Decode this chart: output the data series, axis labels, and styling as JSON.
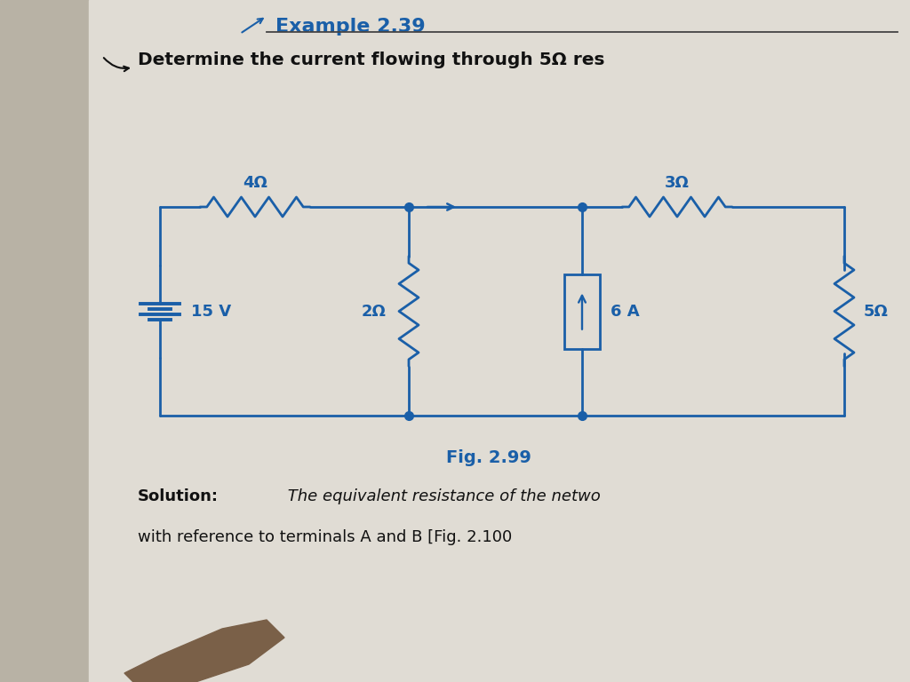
{
  "title": "Example 2.39",
  "question": "Determine the current flowing through 5Ω res",
  "fig_label": "Fig. 2.99",
  "solution_line1": "Solution: The equivalent resistance of the netwo",
  "solution_line2": "with reference to terminals A and B [Fig. 2.100",
  "bg_color_top": "#c8c3b8",
  "bg_color_page": "#dedad3",
  "circuit_color": "#1a5fa8",
  "text_color_blue": "#1a5fa8",
  "text_color_dark": "#1a1a1a",
  "resistor_4": "4Ω",
  "resistor_2": "2Ω",
  "resistor_3": "3Ω",
  "resistor_5": "5Ω",
  "voltage_src": "15 V",
  "current_src": "6 A",
  "xL": 1.8,
  "xM1": 4.6,
  "xM2": 6.55,
  "xR": 9.5,
  "yT": 5.35,
  "yB": 3.0,
  "yMid": 4.175
}
